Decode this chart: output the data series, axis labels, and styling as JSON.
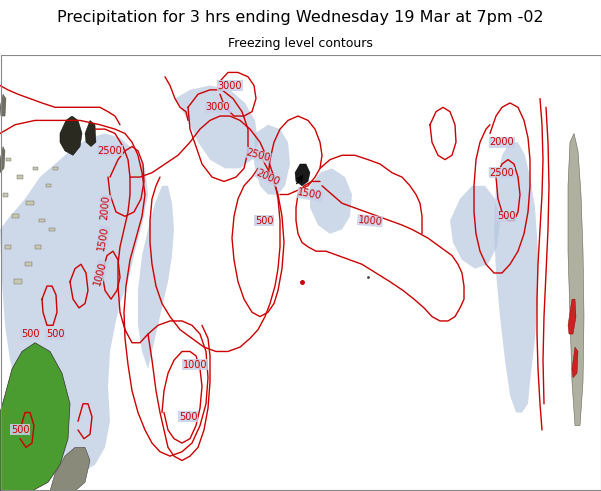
{
  "title": "Precipitation for 3 hrs ending Wednesday 19 Mar at 7pm -02",
  "subtitle": "Freezing level contours",
  "title_fontsize": 11.5,
  "subtitle_fontsize": 9,
  "ocean_color": "#c8d0e8",
  "precip_color": "#b8c8e0",
  "header_bg": "#f5f5f5",
  "contour_color": "#cc0000",
  "contour_lw": 1.0,
  "label_fontsize": 7,
  "fig_width": 6.01,
  "fig_height": 4.91,
  "dpi": 100
}
